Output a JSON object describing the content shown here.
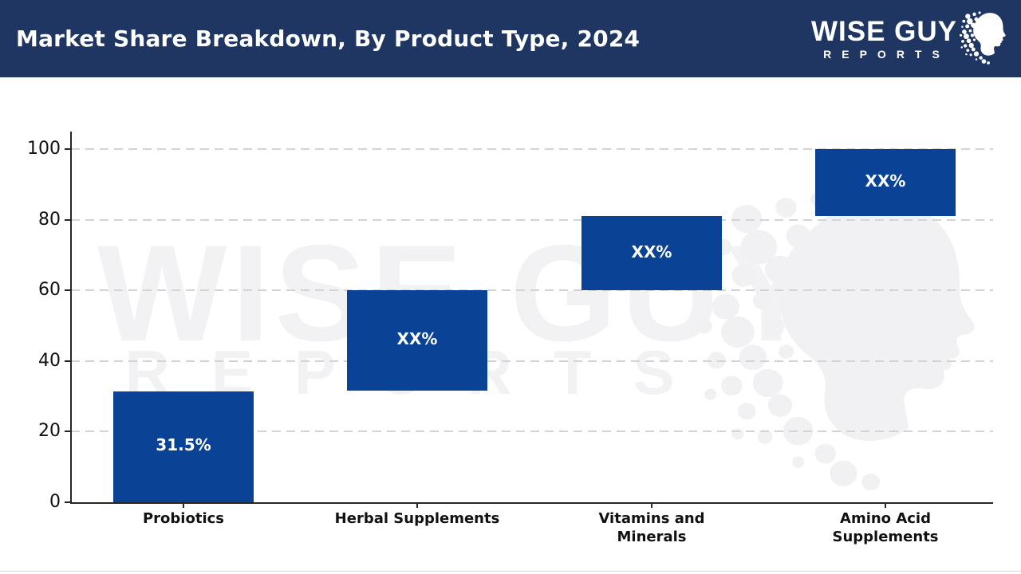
{
  "header": {
    "title": "Market Share Breakdown, By Product Type, 2024",
    "logo": {
      "line1": "WISE GUY",
      "line2": "REPORTS"
    }
  },
  "watermark": {
    "line1": "WISE GUY",
    "line2": "REPORTS"
  },
  "chart_data": {
    "type": "bar",
    "subtype": "waterfall",
    "title": "Market Share Breakdown, By Product Type, 2024",
    "categories": [
      "Probiotics",
      "Herbal Supplements",
      "Vitamins and\nMinerals",
      "Amino Acid\nSupplements"
    ],
    "segments": [
      {
        "category": "Probiotics",
        "start": 0,
        "end": 31.5,
        "label": "31.5%"
      },
      {
        "category": "Herbal Supplements",
        "start": 31.5,
        "end": 60,
        "label": "XX%"
      },
      {
        "category": "Vitamins and Minerals",
        "start": 60,
        "end": 81,
        "label": "XX%"
      },
      {
        "category": "Amino Acid Supplements",
        "start": 81,
        "end": 100,
        "label": "XX%"
      }
    ],
    "yticks": [
      0,
      20,
      40,
      60,
      80,
      100
    ],
    "ylim": [
      0,
      100
    ],
    "xlabel": "",
    "ylabel": "",
    "grid": true,
    "legend": false,
    "bar_color": "#0a4296",
    "bar_label_color": "#ffffff"
  },
  "colors": {
    "header_bg": "#1f3662",
    "header_text": "#ffffff",
    "bar": "#0a4296",
    "gridline": "#d4d4d4",
    "axis": "#262626",
    "tick_text": "#111111",
    "watermark": "#f2f2f4"
  }
}
